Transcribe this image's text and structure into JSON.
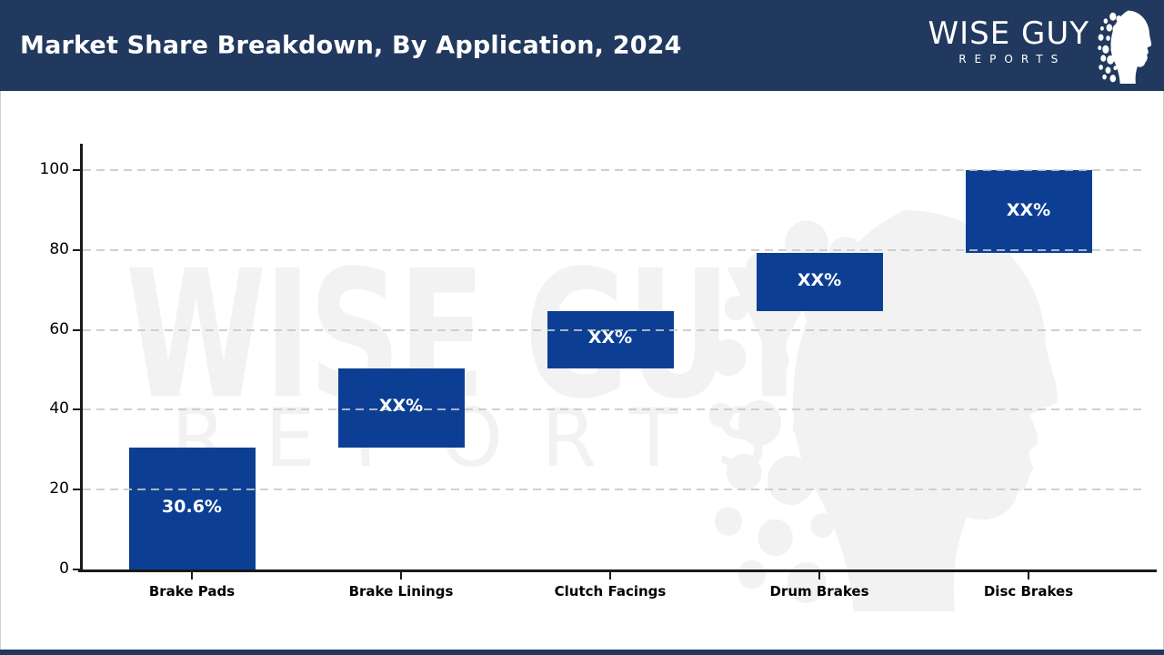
{
  "header": {
    "title": "Market Share Breakdown, By Application, 2024",
    "logo": {
      "line1": "WISE GUY",
      "line2": "REPORTS"
    }
  },
  "watermark": {
    "line1": "WISE GUY",
    "line2": "REPORTS"
  },
  "chart_data": {
    "type": "bar",
    "subtype": "waterfall",
    "title": "Market Share Breakdown, By Application, 2024",
    "categories": [
      "Brake Pads",
      "Brake Linings",
      "Clutch Facings",
      "Drum Brakes",
      "Disc Brakes"
    ],
    "series": [
      {
        "name": "Market share (%)",
        "segments": [
          {
            "category": "Brake Pads",
            "start": 0,
            "end": 30.6,
            "label": "30.6%"
          },
          {
            "category": "Brake Linings",
            "start": 30.6,
            "end": 50.4,
            "label": "XX%"
          },
          {
            "category": "Clutch Facings",
            "start": 50.4,
            "end": 64.8,
            "label": "XX%"
          },
          {
            "category": "Drum Brakes",
            "start": 64.8,
            "end": 79.2,
            "label": "XX%"
          },
          {
            "category": "Disc Brakes",
            "start": 79.2,
            "end": 100,
            "label": "XX%"
          }
        ]
      }
    ],
    "xlabel": "",
    "ylabel": "",
    "ylim": [
      0,
      105
    ],
    "yticks": [
      0,
      20,
      40,
      60,
      80,
      100
    ],
    "grid": "horizontal-dashed",
    "legend": "none",
    "colors": {
      "bar": "#0c3f93",
      "bar_label": "#ffffff",
      "grid": "#d6d6d6",
      "axis": "#1a1a1a",
      "header_bg": "#22395f",
      "watermark": "#f2f2f2"
    }
  }
}
